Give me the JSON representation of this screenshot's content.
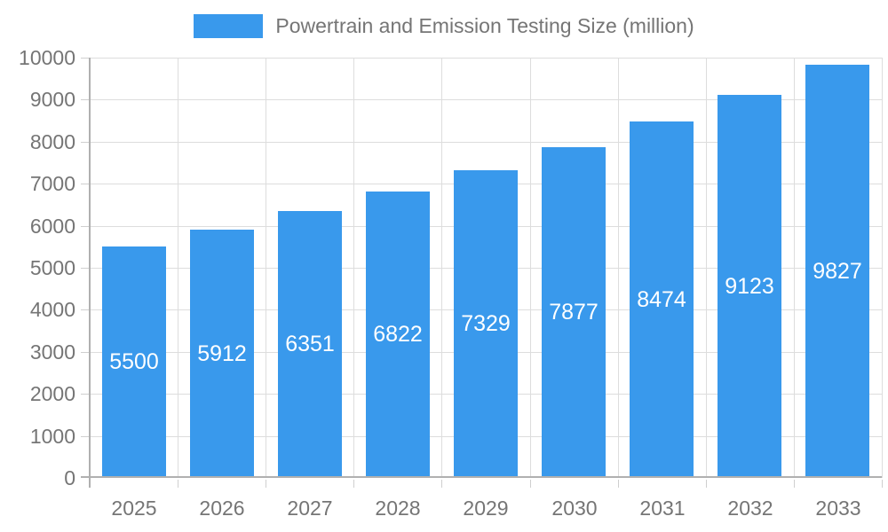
{
  "chart_data": {
    "type": "bar",
    "title": "Powertrain and Emission Testing Size (million)",
    "legend_position": "top",
    "categories": [
      "2025",
      "2026",
      "2027",
      "2028",
      "2029",
      "2030",
      "2031",
      "2032",
      "2033"
    ],
    "series": [
      {
        "name": "Powertrain and Emission Testing Size (million)",
        "values": [
          5500,
          5912,
          6351,
          6822,
          7329,
          7877,
          8474,
          9123,
          9827
        ]
      }
    ],
    "value_labels_shown": true,
    "xlabel": "",
    "ylabel": "",
    "ylim": [
      0,
      10000
    ],
    "ytick_step": 1000,
    "grid": true,
    "colors": {
      "bar": "#3999EC",
      "grid": "#dddddd",
      "tick": "#cfcfcf",
      "axis": "#b0b0b0",
      "label": "#757575",
      "value_label": "#ffffff",
      "background": "#ffffff"
    }
  }
}
